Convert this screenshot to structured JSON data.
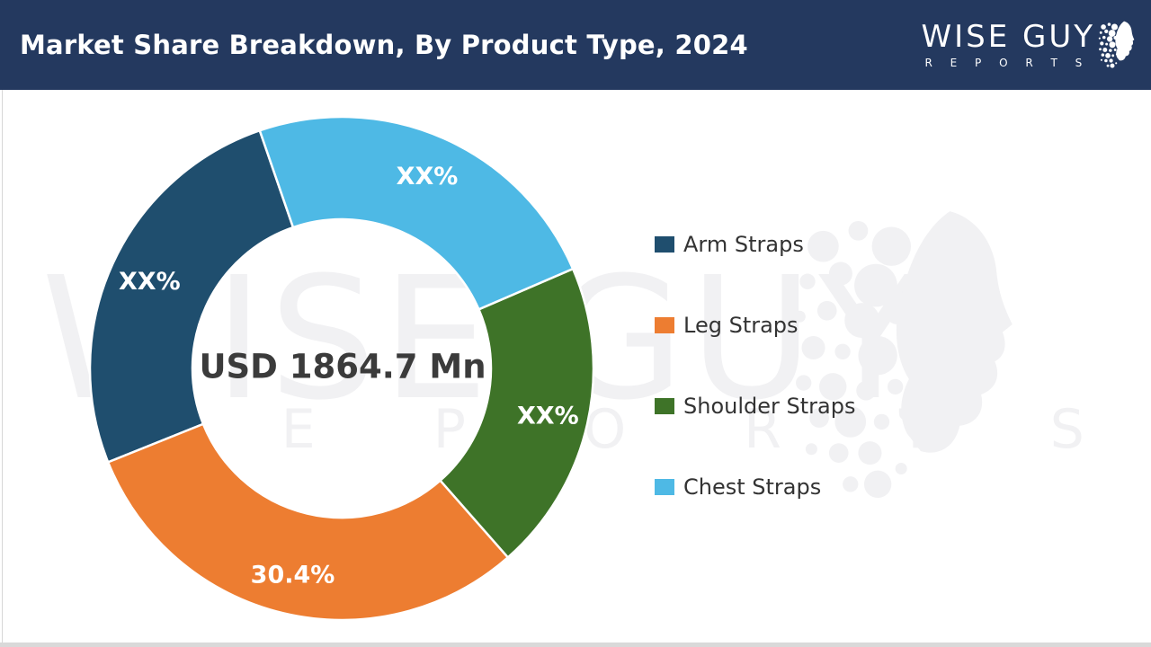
{
  "header": {
    "title": "Market Share Breakdown, By Product Type, 2024",
    "bg_color": "#24395F",
    "logo": {
      "line1": "WISE GUY",
      "line2": "R E P O R T S"
    }
  },
  "watermark": {
    "line1": "WISE GUY",
    "line2": "R E P O R T S",
    "color": "#F1F1F3"
  },
  "chart_data": {
    "type": "pie",
    "subtype": "donut",
    "title": "Market Share Breakdown, By Product Type, 2024",
    "center_text": "USD 1864.7 Mn",
    "start_angle_deg": 109,
    "direction": "counterclockwise",
    "legend_position": "right",
    "slices": [
      {
        "label": "Arm Straps",
        "value_pct": 25.8,
        "display_label": "XX%",
        "color": "#1F4E6E"
      },
      {
        "label": "Leg Straps",
        "value_pct": 30.4,
        "display_label": "30.4%",
        "color": "#ED7D31"
      },
      {
        "label": "Shoulder Straps",
        "value_pct": 20.0,
        "display_label": "XX%",
        "color": "#3E7328"
      },
      {
        "label": "Chest Straps",
        "value_pct": 23.8,
        "display_label": "XX%",
        "color": "#4EB9E5"
      }
    ]
  },
  "colors": {
    "header_bg": "#24395F",
    "footer_bar": "#D9D9D9",
    "center_text": "#3B3B3B",
    "legend_text": "#333333",
    "slice_label_text": "#FFFFFF",
    "watermark": "#F1F1F3"
  }
}
